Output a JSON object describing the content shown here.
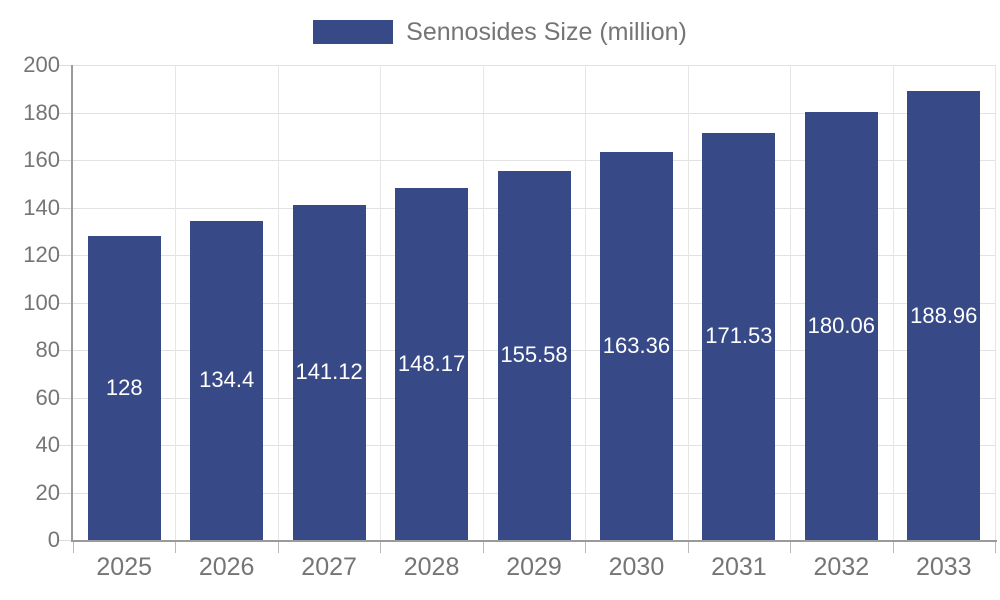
{
  "legend": {
    "label": "Sennosides Size (million)"
  },
  "chart_data": {
    "type": "bar",
    "title": "Sennosides Size (million)",
    "categories": [
      "2025",
      "2026",
      "2027",
      "2028",
      "2029",
      "2030",
      "2031",
      "2032",
      "2033"
    ],
    "values": [
      128,
      134.4,
      141.12,
      148.17,
      155.58,
      163.36,
      171.53,
      180.06,
      188.96
    ],
    "series": [
      {
        "name": "Sennosides Size (million)",
        "values": [
          128,
          134.4,
          141.12,
          148.17,
          155.58,
          163.36,
          171.53,
          180.06,
          188.96
        ]
      }
    ],
    "xlabel": "",
    "ylabel": "",
    "ylim": [
      0,
      200
    ],
    "yticks": [
      0,
      20,
      40,
      60,
      80,
      100,
      120,
      140,
      160,
      180,
      200
    ],
    "grid": true,
    "legend_position": "top",
    "value_labels_inside_bars": true,
    "colors": {
      "bar": "#374a87",
      "bar_value_text": "#ffffff",
      "axis_line": "#9a9a9a",
      "gridline": "#e2e2e2",
      "tick_label": "#757575",
      "legend_text": "#757575",
      "background": "#ffffff"
    }
  }
}
